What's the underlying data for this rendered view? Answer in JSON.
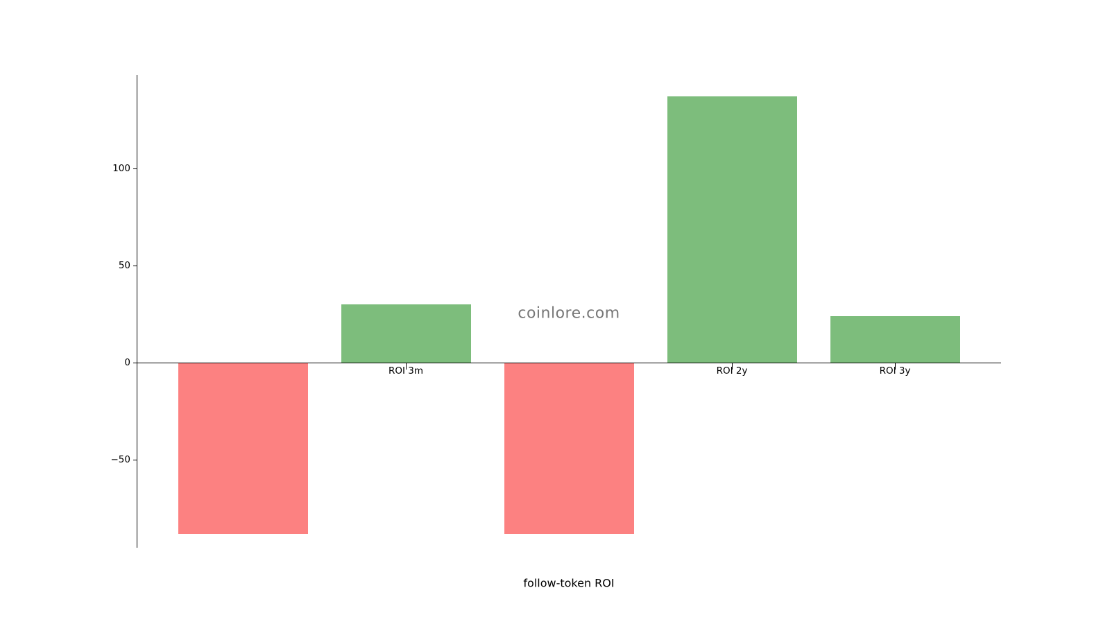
{
  "watermark": {
    "text": "coinlore.com",
    "color": "#777777"
  },
  "chart_data": {
    "type": "bar",
    "title": "follow-token ROI",
    "categories": [
      "",
      "ROI 3m",
      "",
      "ROI 2y",
      "ROI 3y"
    ],
    "values": [
      -88,
      30,
      -88,
      137,
      24
    ],
    "positive_color": "#7dbd7c",
    "negative_color": "#fc8181",
    "axis_color": "#000000",
    "y_ticks": [
      100,
      50,
      0,
      -50
    ],
    "y_tick_labels": [
      "100",
      "50",
      "0",
      "−50"
    ],
    "ylim": [
      -95,
      148
    ],
    "xlabel": "",
    "ylabel": "",
    "grid": false,
    "legend": false
  }
}
